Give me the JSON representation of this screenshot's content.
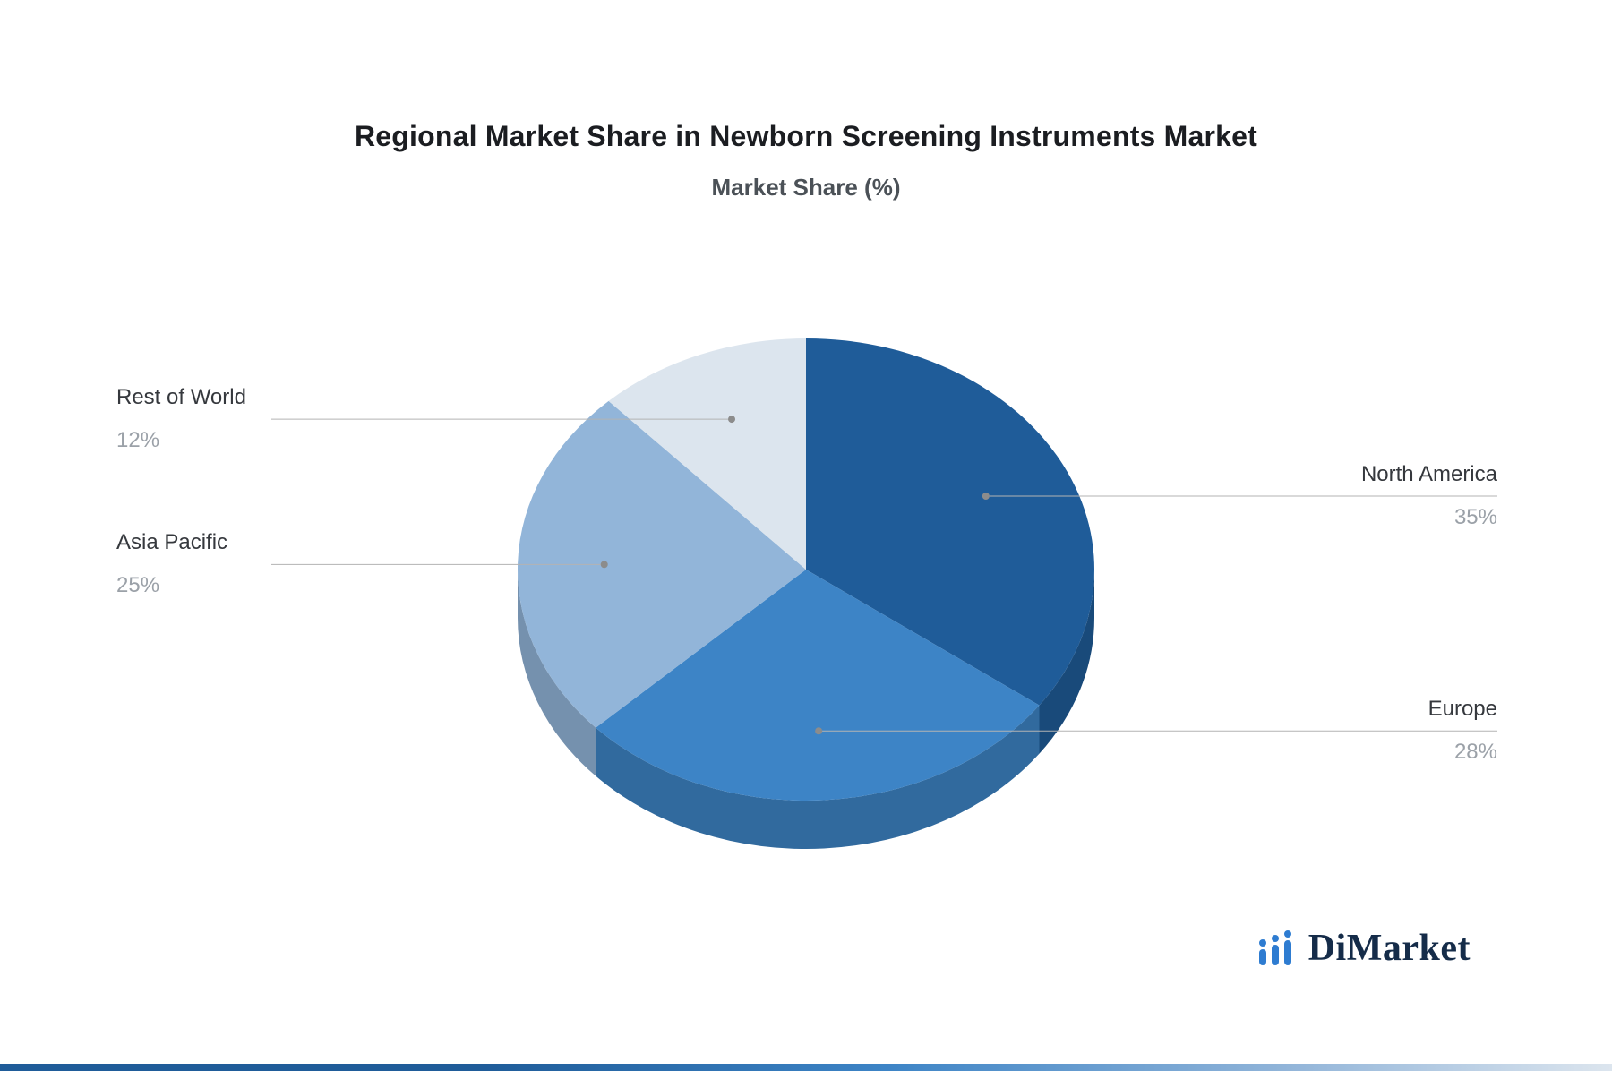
{
  "brand": {
    "name": "DiMarket",
    "icon": "bar-chart-logo-icon",
    "accent_color": "#2e7cd1",
    "text_color": "#152c49"
  },
  "footer_strip_colors": [
    "#1f5c99",
    "#3d84c6",
    "#92b5d9",
    "#dce5ee"
  ],
  "chart_data": {
    "type": "pie",
    "three_d": true,
    "title": "Regional Market Share in Newborn Screening Instruments Market",
    "subtitle": "Market Share (%)",
    "unit": "%",
    "start_angle_deg": -90,
    "direction": "clockwise",
    "legend_position": "callout-labels",
    "categories": [
      "North America",
      "Europe",
      "Asia Pacific",
      "Rest of World"
    ],
    "values": [
      35,
      28,
      25,
      12
    ],
    "slices": [
      {
        "label": "North America",
        "value": 35,
        "pct_label": "35%",
        "color": "#1f5c99",
        "side": "right"
      },
      {
        "label": "Europe",
        "value": 28,
        "pct_label": "28%",
        "color": "#3d84c6",
        "side": "right"
      },
      {
        "label": "Asia Pacific",
        "value": 25,
        "pct_label": "25%",
        "color": "#92b5d9",
        "side": "left"
      },
      {
        "label": "Rest of World",
        "value": 12,
        "pct_label": "12%",
        "color": "#dce5ee",
        "side": "left"
      }
    ],
    "leader_line_color": "#b3b3b3",
    "leader_dot_color": "#8c8c8c"
  }
}
